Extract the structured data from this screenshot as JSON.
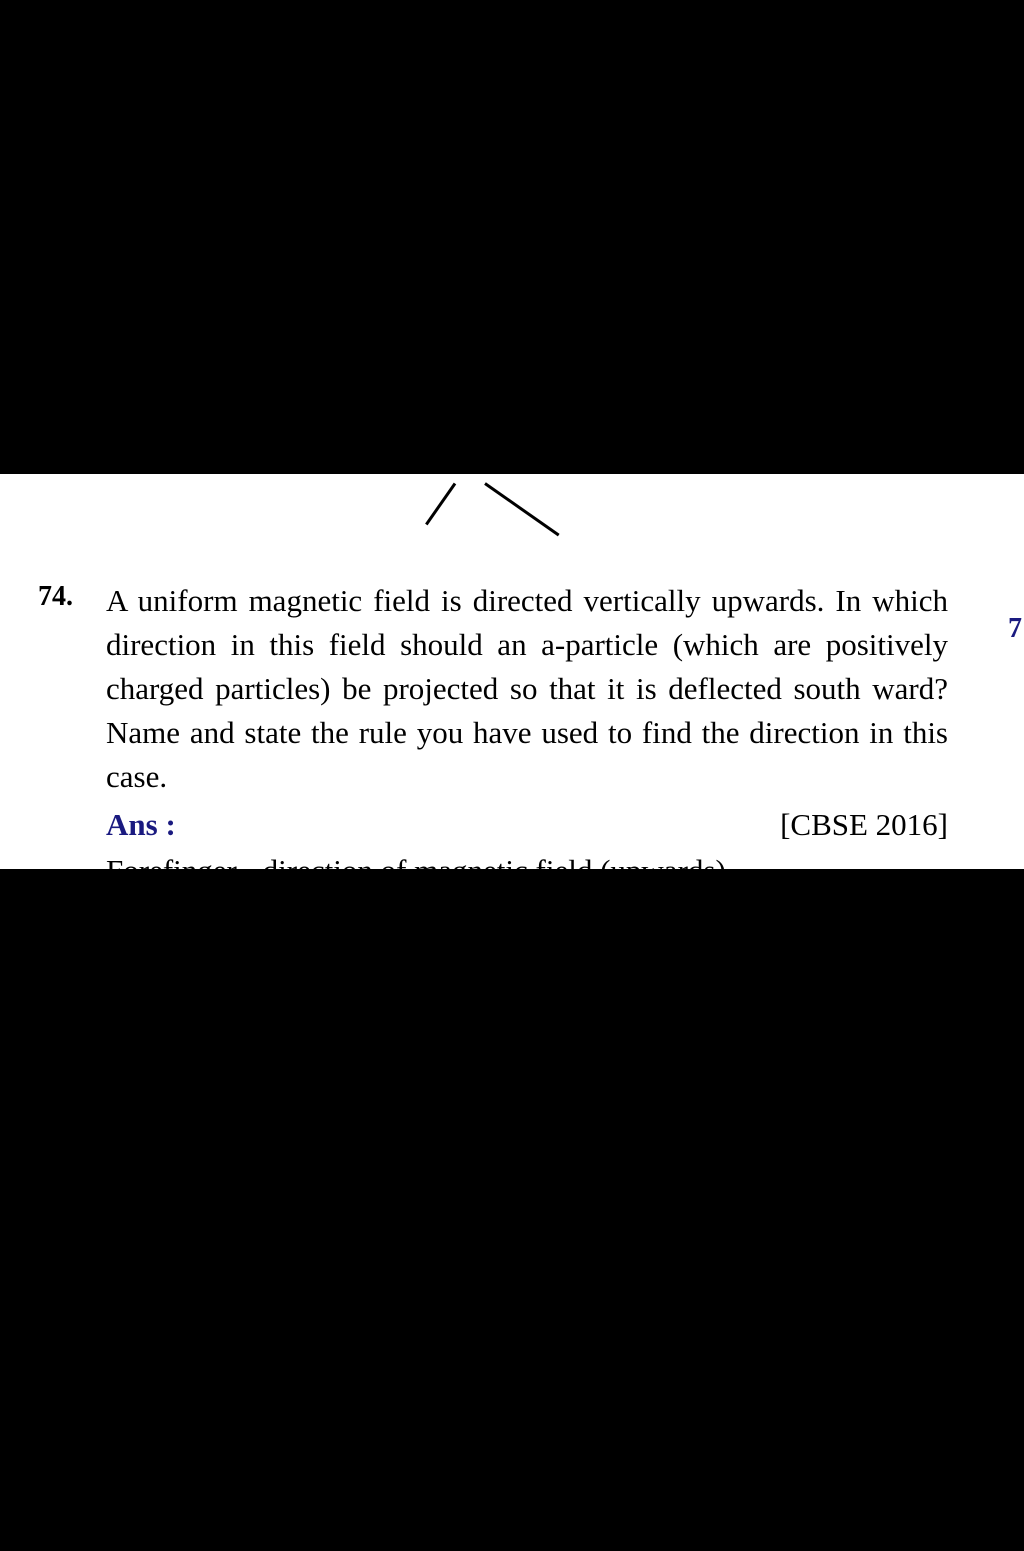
{
  "background_color": "#000000",
  "panel_background": "#ffffff",
  "text_color": "#000000",
  "accent_color": "#1a1a80",
  "question": {
    "number": "74.",
    "text": "A uniform magnetic field is directed vertically upwards. In which direction in this field should an a-particle (which are positively charged particles) be projected so that it is deflected south ward? Name and state the rule you have used to find the direction in this case.",
    "number_fontsize": 28,
    "text_fontsize": 31
  },
  "answer": {
    "label": "Ans :",
    "exam_reference": "[CBSE 2016]",
    "text": "Forefinger - direction of magnetic field (upwards).",
    "label_fontsize": 31,
    "text_fontsize": 31
  },
  "cut_off": {
    "partial_number": "7"
  },
  "diagram": {
    "line_color": "#000000",
    "line_width": 3
  }
}
